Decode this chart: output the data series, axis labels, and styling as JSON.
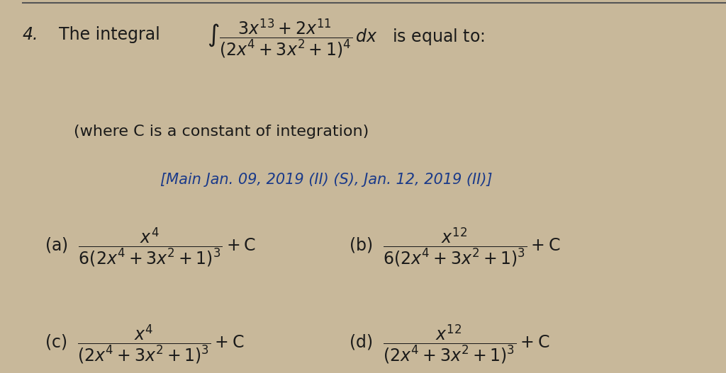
{
  "bg_color": "#c8b89a",
  "text_color": "#1a1a1a",
  "fig_width": 10.24,
  "fig_height": 5.27,
  "question_number": "4.",
  "intro_text": "The integral",
  "where_text": "(where C is a constant of integration)",
  "ref_text": "[Main Jan. 09, 2019 (II) (S), Jan. 12, 2019 (II)]",
  "ref_color": "#1a3a8a",
  "line_color": "#555555",
  "fs_main": 17,
  "fs_ref": 15
}
